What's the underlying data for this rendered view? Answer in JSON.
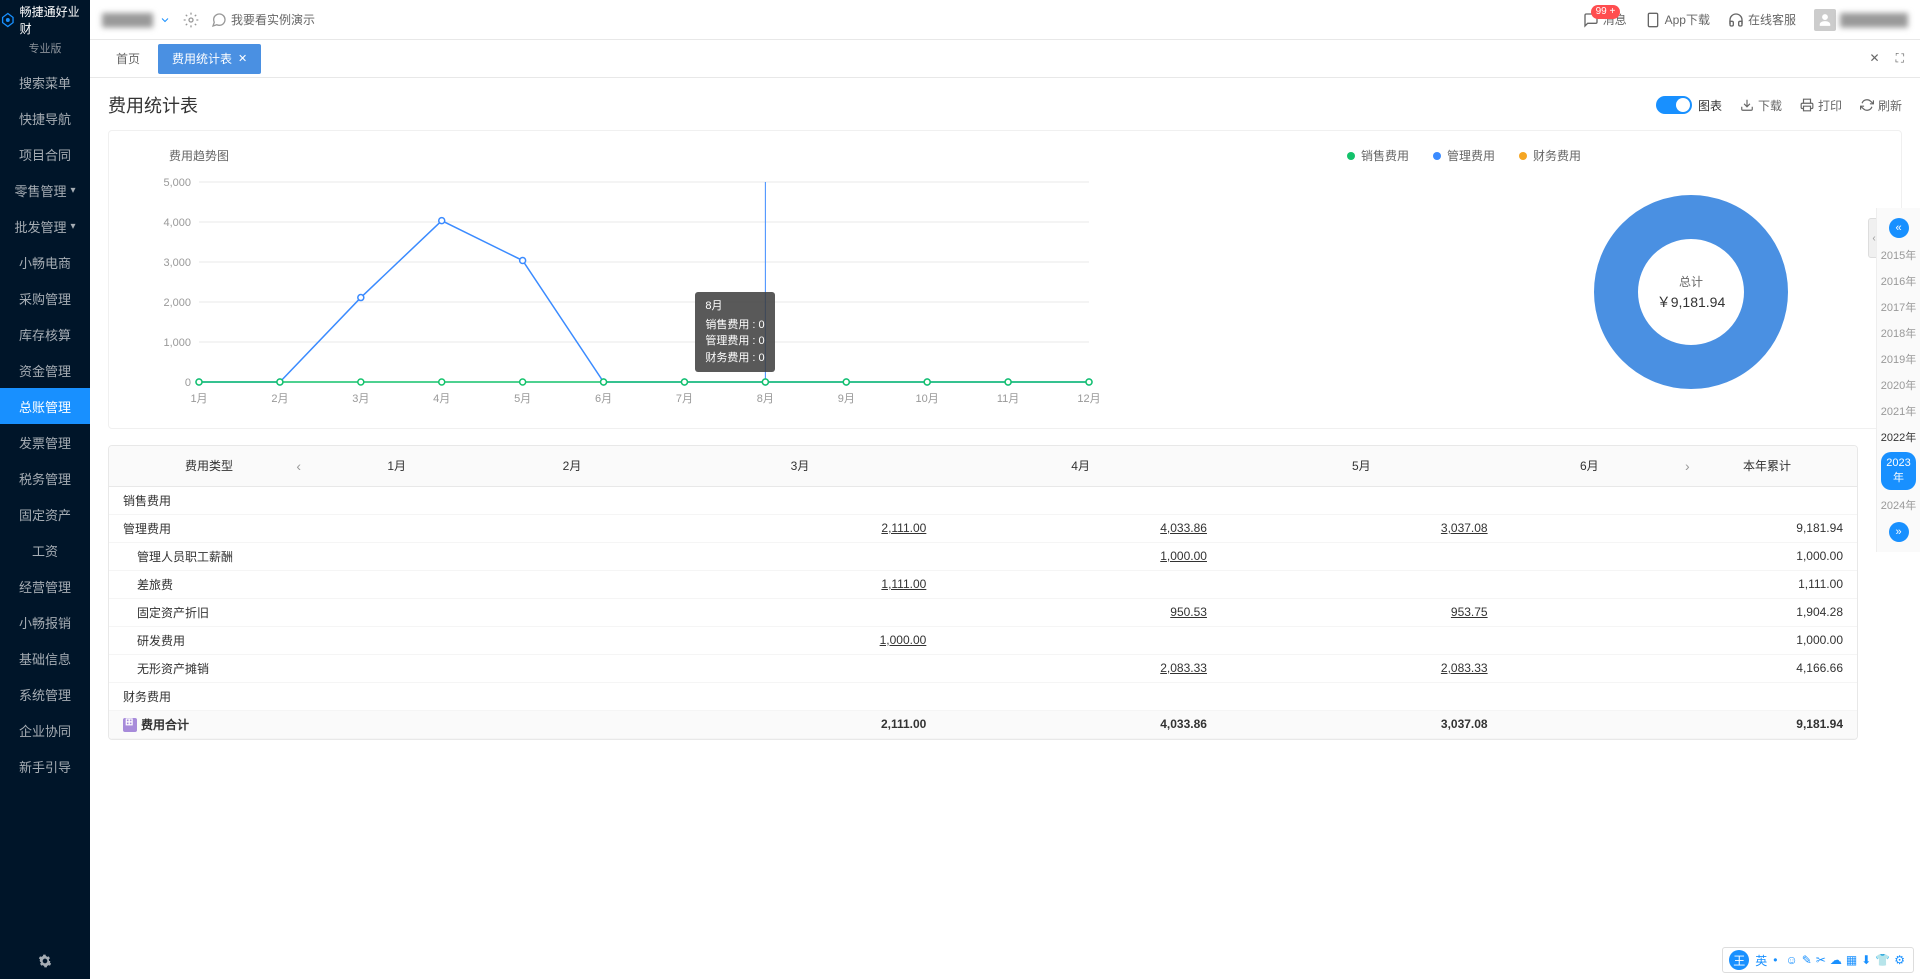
{
  "app": {
    "brand": "畅捷通好业财",
    "edition": "专业版"
  },
  "sidebar": {
    "items": [
      {
        "label": "搜索菜单",
        "expandable": false
      },
      {
        "label": "快捷导航",
        "expandable": false
      },
      {
        "label": "项目合同",
        "expandable": false
      },
      {
        "label": "零售管理",
        "expandable": true
      },
      {
        "label": "批发管理",
        "expandable": true
      },
      {
        "label": "小畅电商",
        "expandable": false
      },
      {
        "label": "采购管理",
        "expandable": false
      },
      {
        "label": "库存核算",
        "expandable": false
      },
      {
        "label": "资金管理",
        "expandable": false
      },
      {
        "label": "总账管理",
        "expandable": false,
        "active": true
      },
      {
        "label": "发票管理",
        "expandable": false
      },
      {
        "label": "税务管理",
        "expandable": false
      },
      {
        "label": "固定资产",
        "expandable": false
      },
      {
        "label": "工资",
        "expandable": false
      },
      {
        "label": "经营管理",
        "expandable": false
      },
      {
        "label": "小畅报销",
        "expandable": false
      },
      {
        "label": "基础信息",
        "expandable": false
      },
      {
        "label": "系统管理",
        "expandable": false
      },
      {
        "label": "企业协同",
        "expandable": false
      },
      {
        "label": "新手引导",
        "expandable": false
      }
    ]
  },
  "topbar": {
    "org": "██████",
    "demo": "我要看实例演示",
    "messages": {
      "label": "消息",
      "badge": "99 +"
    },
    "download": "App下载",
    "support": "在线客服",
    "user": "████████"
  },
  "tabs": {
    "items": [
      {
        "label": "首页"
      },
      {
        "label": "费用统计表",
        "active": true,
        "closable": true
      }
    ]
  },
  "page": {
    "title": "费用统计表",
    "actions": {
      "chart": "图表",
      "download": "下载",
      "print": "打印",
      "refresh": "刷新"
    }
  },
  "chart": {
    "trend_title": "费用趋势图",
    "legend": [
      {
        "label": "销售费用",
        "color": "#13c26b"
      },
      {
        "label": "管理费用",
        "color": "#3b8bff"
      },
      {
        "label": "财务费用",
        "color": "#f5a623"
      }
    ],
    "x_labels": [
      "1月",
      "2月",
      "3月",
      "4月",
      "5月",
      "6月",
      "7月",
      "8月",
      "9月",
      "10月",
      "11月",
      "12月"
    ],
    "y_ticks": [
      0,
      1000,
      2000,
      3000,
      4000,
      5000
    ],
    "series_mgmt": [
      0,
      0,
      2111,
      4033.86,
      3037.08,
      0,
      0,
      0,
      0,
      0,
      0,
      0
    ],
    "series_sales": [
      0,
      0,
      0,
      0,
      0,
      0,
      0,
      0,
      0,
      0,
      0,
      0
    ],
    "line_color_mgmt": "#3b8bff",
    "line_color_sales": "#13c26b",
    "grid_color": "#e8e8e8",
    "hover_line_color": "#3b8bff",
    "hover_index": 7,
    "tooltip": {
      "title": "8月",
      "rows": [
        {
          "label": "销售费用",
          "value": "0"
        },
        {
          "label": "管理费用",
          "value": "0"
        },
        {
          "label": "财务费用",
          "value": "0"
        }
      ]
    },
    "donut": {
      "label": "总计",
      "value": "￥9,181.94",
      "color": "#4a90e2",
      "bg_color": "#ffffff"
    }
  },
  "year_rail": {
    "years": [
      "2015年",
      "2016年",
      "2017年",
      "2018年",
      "2019年",
      "2020年",
      "2021年",
      "2022年",
      "2023年",
      "2024年"
    ],
    "current": "2022年",
    "active": "2023年"
  },
  "table": {
    "type_header": "费用类型",
    "month_headers": [
      "1月",
      "2月",
      "3月",
      "4月",
      "5月",
      "6月"
    ],
    "total_header": "本年累计",
    "rows": [
      {
        "label": "销售费用",
        "indent": 0,
        "cells": [
          "",
          "",
          "",
          "",
          "",
          ""
        ],
        "total": ""
      },
      {
        "label": "管理费用",
        "indent": 0,
        "cells": [
          "",
          "",
          "2,111.00",
          "4,033.86",
          "3,037.08",
          ""
        ],
        "total": "9,181.94",
        "link": true
      },
      {
        "label": "管理人员职工薪酬",
        "indent": 1,
        "cells": [
          "",
          "",
          "",
          "1,000.00",
          "",
          ""
        ],
        "total": "1,000.00",
        "link": true
      },
      {
        "label": "差旅费",
        "indent": 1,
        "cells": [
          "",
          "",
          "1,111.00",
          "",
          "",
          ""
        ],
        "total": "1,111.00",
        "link": true
      },
      {
        "label": "固定资产折旧",
        "indent": 1,
        "cells": [
          "",
          "",
          "",
          "950.53",
          "953.75",
          ""
        ],
        "total": "1,904.28",
        "link": true
      },
      {
        "label": "研发费用",
        "indent": 1,
        "cells": [
          "",
          "",
          "1,000.00",
          "",
          "",
          ""
        ],
        "total": "1,000.00",
        "link": true
      },
      {
        "label": "无形资产摊销",
        "indent": 1,
        "cells": [
          "",
          "",
          "",
          "2,083.33",
          "2,083.33",
          ""
        ],
        "total": "4,166.66",
        "link": true
      },
      {
        "label": "财务费用",
        "indent": 0,
        "cells": [
          "",
          "",
          "",
          "",
          "",
          ""
        ],
        "total": ""
      }
    ],
    "total_row": {
      "label": "费用合计",
      "cells": [
        "",
        "",
        "2,111.00",
        "4,033.86",
        "3,037.08",
        ""
      ],
      "total": "9,181.94"
    }
  },
  "ime": {
    "main": "王",
    "lang": "英",
    "icons": [
      "☺",
      "✎",
      "✂",
      "☁",
      "▦",
      "⬇",
      "👕",
      "⚙"
    ]
  }
}
